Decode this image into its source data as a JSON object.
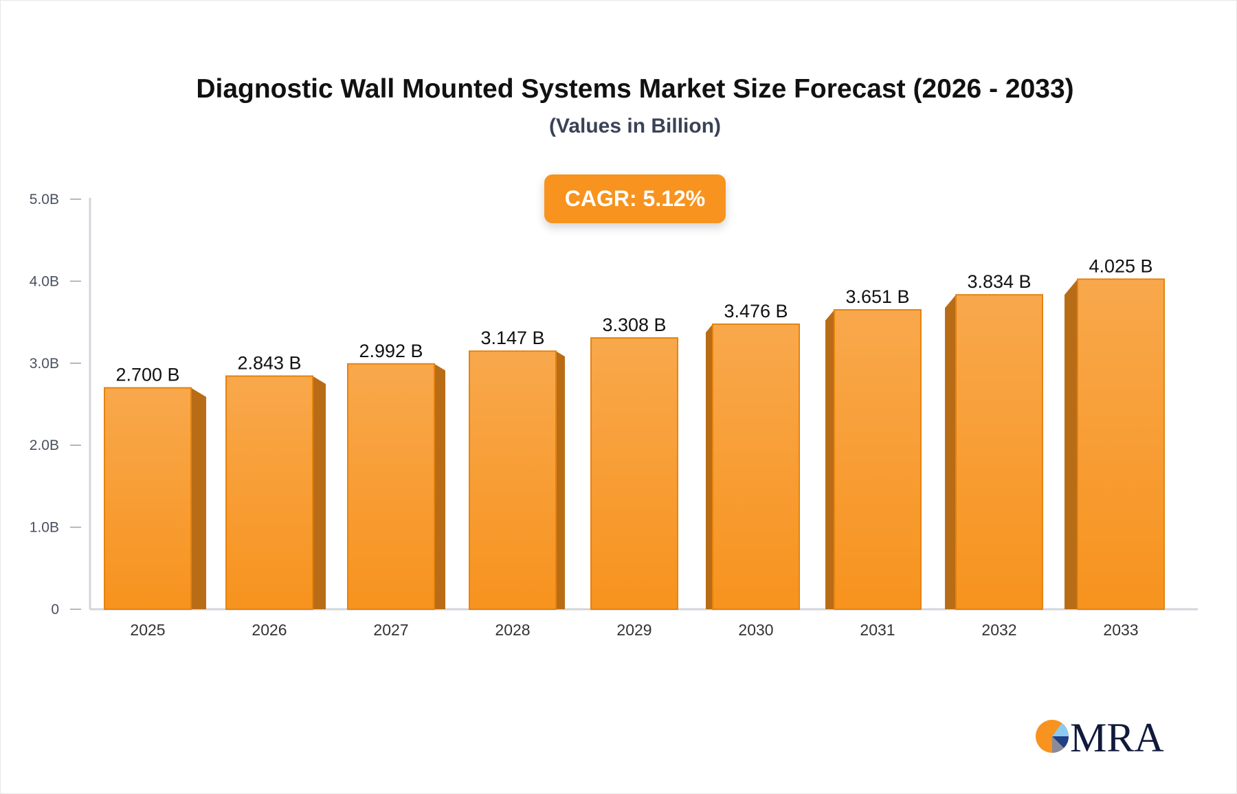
{
  "chart_data": {
    "type": "bar",
    "title": "Diagnostic Wall Mounted Systems Market Size Forecast (2026 - 2033)",
    "subtitle": "(Values in Billion)",
    "annotation": "CAGR: 5.12%",
    "categories": [
      "2025",
      "2026",
      "2027",
      "2028",
      "2029",
      "2030",
      "2031",
      "2032",
      "2033"
    ],
    "values": [
      2.7,
      2.843,
      2.992,
      3.147,
      3.308,
      3.476,
      3.651,
      3.834,
      4.025
    ],
    "data_labels": [
      "2.700 B",
      "2.843 B",
      "2.992 B",
      "3.147 B",
      "3.308 B",
      "3.476 B",
      "3.651 B",
      "3.834 B",
      "4.025 B"
    ],
    "y_ticks": [
      0,
      1,
      2,
      3,
      4,
      5
    ],
    "y_tick_labels": [
      "0",
      "1.0B",
      "2.0B",
      "3.0B",
      "4.0B",
      "5.0B"
    ],
    "ylim": [
      0,
      5
    ],
    "xlabel": "",
    "ylabel": "",
    "grid": false,
    "legend": "none",
    "colors": {
      "bar_top": "#f8a84c",
      "bar_bottom": "#f7931e",
      "bar_side": "#b96c16",
      "badge": "#f7931e"
    }
  },
  "logo": {
    "text": "MRA"
  }
}
